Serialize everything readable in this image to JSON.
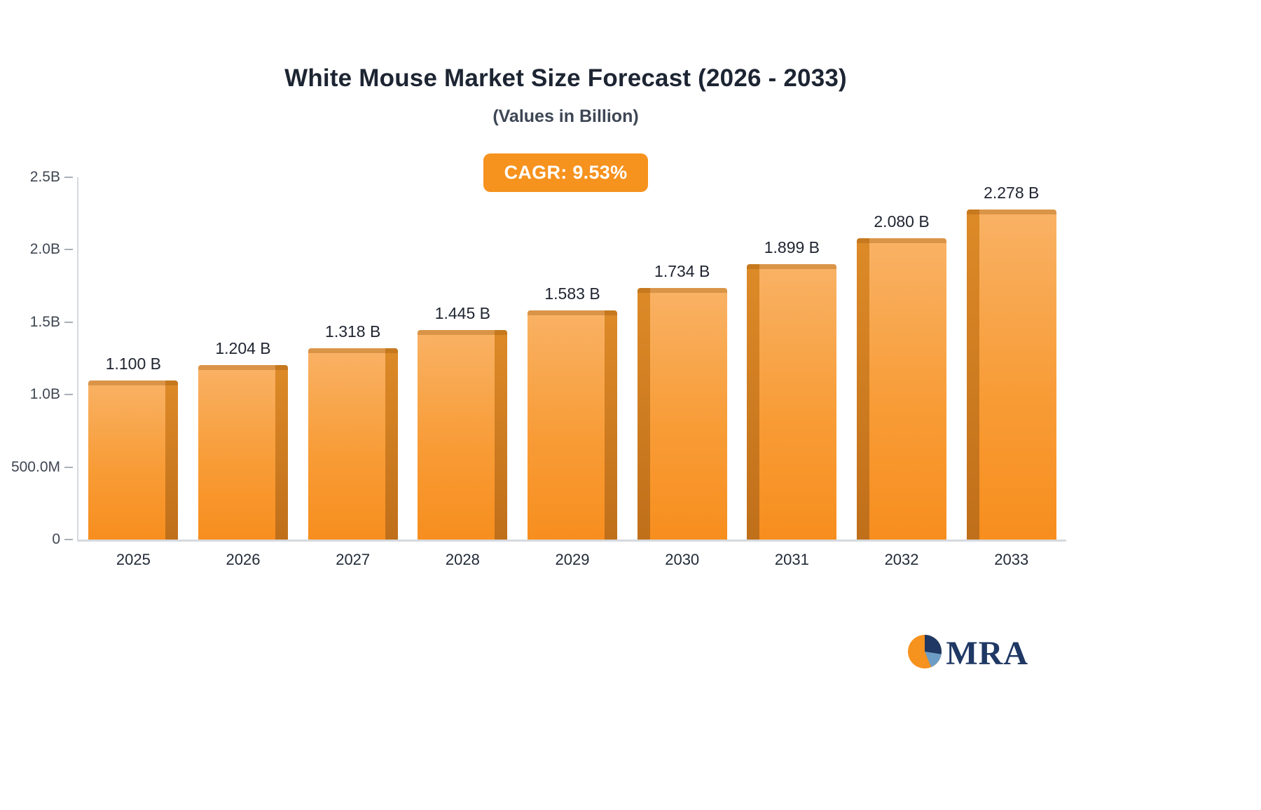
{
  "chart_data": {
    "type": "bar",
    "title": "White Mouse Market Size Forecast (2026 - 2033)",
    "subtitle": "(Values in Billion)",
    "cagr_label": "CAGR: 9.53%",
    "categories": [
      "2025",
      "2026",
      "2027",
      "2028",
      "2029",
      "2030",
      "2031",
      "2032",
      "2033"
    ],
    "values": [
      1.1,
      1.204,
      1.318,
      1.445,
      1.583,
      1.734,
      1.899,
      2.08,
      2.278
    ],
    "value_labels": [
      "1.100 B",
      "1.204 B",
      "1.318 B",
      "1.445 B",
      "1.583 B",
      "1.734 B",
      "1.899 B",
      "2.080 B",
      "2.278 B"
    ],
    "xlabel": "",
    "ylabel": "",
    "ylim": [
      0,
      2.5
    ],
    "yticks": [
      {
        "label": "0",
        "value": 0
      },
      {
        "label": "500.0M",
        "value": 0.5
      },
      {
        "label": "1.0B",
        "value": 1.0
      },
      {
        "label": "1.5B",
        "value": 1.5
      },
      {
        "label": "2.0B",
        "value": 2.0
      },
      {
        "label": "2.5B",
        "value": 2.5
      }
    ],
    "grid": false,
    "legend": false,
    "colors": {
      "bar_top": "#f9b265",
      "bar_bottom": "#f78e1e",
      "bar_side": "#c9761c",
      "badge_bg": "#f6921e",
      "axis": "#d6d9de",
      "text_dark": "#1d2533"
    }
  },
  "logo": {
    "text": "MRA",
    "icon_colors": {
      "orange": "#f6921e",
      "navy": "#1f3864",
      "blue": "#6d9dc5"
    }
  }
}
